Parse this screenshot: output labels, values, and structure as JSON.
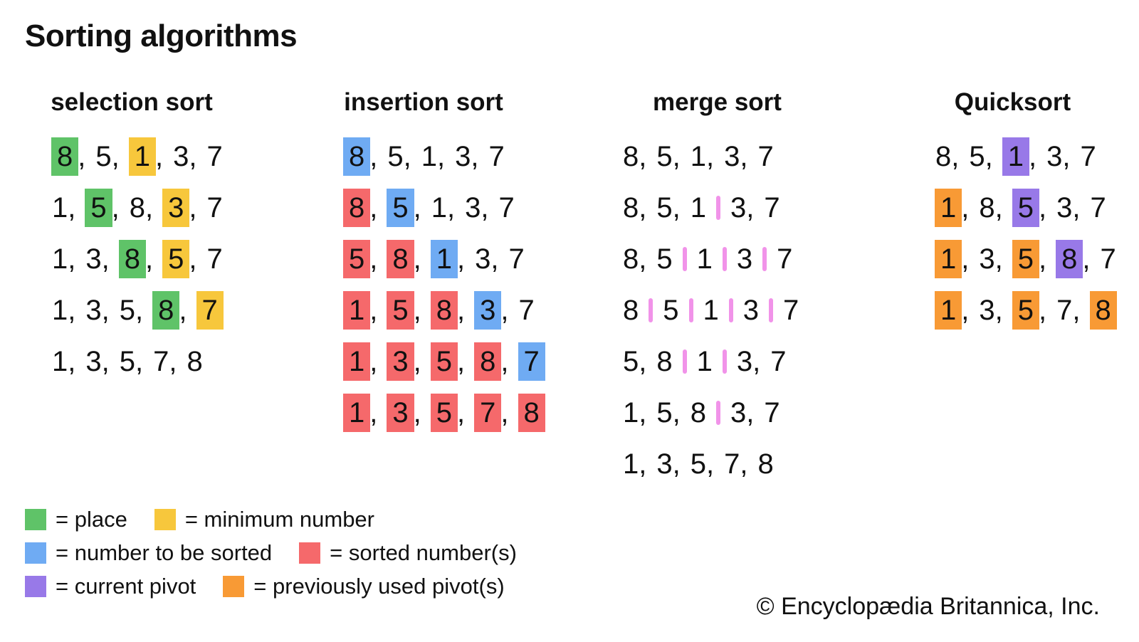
{
  "title": "Sorting algorithms",
  "copyright": "© Encyclopædia Britannica, Inc.",
  "colors": {
    "green": "#5FC368",
    "yellow": "#F7C73C",
    "blue": "#6FABF3",
    "red": "#F5696B",
    "purple": "#9879E8",
    "orange": "#F89A35",
    "pink": "#F193E9"
  },
  "columns": [
    {
      "header": "selection sort",
      "rows": [
        {
          "cells": [
            {
              "v": "8",
              "hl": "green"
            },
            {
              "v": "5"
            },
            {
              "v": "1",
              "hl": "yellow"
            },
            {
              "v": "3"
            },
            {
              "v": "7"
            }
          ],
          "seps": [
            ",",
            ",",
            ",",
            ","
          ]
        },
        {
          "cells": [
            {
              "v": "1"
            },
            {
              "v": "5",
              "hl": "green"
            },
            {
              "v": "8"
            },
            {
              "v": "3",
              "hl": "yellow"
            },
            {
              "v": "7"
            }
          ],
          "seps": [
            ",",
            ",",
            ",",
            ","
          ]
        },
        {
          "cells": [
            {
              "v": "1"
            },
            {
              "v": "3"
            },
            {
              "v": "8",
              "hl": "green"
            },
            {
              "v": "5",
              "hl": "yellow"
            },
            {
              "v": "7"
            }
          ],
          "seps": [
            ",",
            ",",
            ",",
            ","
          ]
        },
        {
          "cells": [
            {
              "v": "1"
            },
            {
              "v": "3"
            },
            {
              "v": "5"
            },
            {
              "v": "8",
              "hl": "green"
            },
            {
              "v": "7",
              "hl": "yellow"
            }
          ],
          "seps": [
            ",",
            ",",
            ",",
            ","
          ]
        },
        {
          "cells": [
            {
              "v": "1"
            },
            {
              "v": "3"
            },
            {
              "v": "5"
            },
            {
              "v": "7"
            },
            {
              "v": "8"
            }
          ],
          "seps": [
            ",",
            ",",
            ",",
            ","
          ]
        }
      ]
    },
    {
      "header": "insertion sort",
      "rows": [
        {
          "cells": [
            {
              "v": "8",
              "hl": "blue"
            },
            {
              "v": "5"
            },
            {
              "v": "1"
            },
            {
              "v": "3"
            },
            {
              "v": "7"
            }
          ],
          "seps": [
            ",",
            ",",
            ",",
            ","
          ]
        },
        {
          "cells": [
            {
              "v": "8",
              "hl": "red"
            },
            {
              "v": "5",
              "hl": "blue"
            },
            {
              "v": "1"
            },
            {
              "v": "3"
            },
            {
              "v": "7"
            }
          ],
          "seps": [
            ",",
            ",",
            ",",
            ","
          ]
        },
        {
          "cells": [
            {
              "v": "5",
              "hl": "red"
            },
            {
              "v": "8",
              "hl": "red"
            },
            {
              "v": "1",
              "hl": "blue"
            },
            {
              "v": "3"
            },
            {
              "v": "7"
            }
          ],
          "seps": [
            ",",
            ",",
            ",",
            ","
          ]
        },
        {
          "cells": [
            {
              "v": "1",
              "hl": "red"
            },
            {
              "v": "5",
              "hl": "red"
            },
            {
              "v": "8",
              "hl": "red"
            },
            {
              "v": "3",
              "hl": "blue"
            },
            {
              "v": "7"
            }
          ],
          "seps": [
            ",",
            ",",
            ",",
            ","
          ]
        },
        {
          "cells": [
            {
              "v": "1",
              "hl": "red"
            },
            {
              "v": "3",
              "hl": "red"
            },
            {
              "v": "5",
              "hl": "red"
            },
            {
              "v": "8",
              "hl": "red"
            },
            {
              "v": "7",
              "hl": "blue"
            }
          ],
          "seps": [
            ",",
            ",",
            ",",
            ","
          ]
        },
        {
          "cells": [
            {
              "v": "1",
              "hl": "red"
            },
            {
              "v": "3",
              "hl": "red"
            },
            {
              "v": "5",
              "hl": "red"
            },
            {
              "v": "7",
              "hl": "red"
            },
            {
              "v": "8",
              "hl": "red"
            }
          ],
          "seps": [
            ",",
            ",",
            ",",
            ","
          ]
        }
      ]
    },
    {
      "header": "merge sort",
      "rows": [
        {
          "cells": [
            {
              "v": "8"
            },
            {
              "v": "5"
            },
            {
              "v": "1"
            },
            {
              "v": "3"
            },
            {
              "v": "7"
            }
          ],
          "seps": [
            ",",
            ",",
            ",",
            ","
          ]
        },
        {
          "cells": [
            {
              "v": "8"
            },
            {
              "v": "5"
            },
            {
              "v": "1"
            },
            {
              "v": "3"
            },
            {
              "v": "7"
            }
          ],
          "seps": [
            ",",
            ",",
            "|",
            ","
          ]
        },
        {
          "cells": [
            {
              "v": "8"
            },
            {
              "v": "5"
            },
            {
              "v": "1"
            },
            {
              "v": "3"
            },
            {
              "v": "7"
            }
          ],
          "seps": [
            ",",
            "|",
            "|",
            "|"
          ]
        },
        {
          "cells": [
            {
              "v": "8"
            },
            {
              "v": "5"
            },
            {
              "v": "1"
            },
            {
              "v": "3"
            },
            {
              "v": "7"
            }
          ],
          "seps": [
            "|",
            "|",
            "|",
            "|"
          ]
        },
        {
          "cells": [
            {
              "v": "5"
            },
            {
              "v": "8"
            },
            {
              "v": "1"
            },
            {
              "v": "3"
            },
            {
              "v": "7"
            }
          ],
          "seps": [
            ",",
            "|",
            "|",
            ","
          ]
        },
        {
          "cells": [
            {
              "v": "1"
            },
            {
              "v": "5"
            },
            {
              "v": "8"
            },
            {
              "v": "3"
            },
            {
              "v": "7"
            }
          ],
          "seps": [
            ",",
            ",",
            "|",
            ","
          ]
        },
        {
          "cells": [
            {
              "v": "1"
            },
            {
              "v": "3"
            },
            {
              "v": "5"
            },
            {
              "v": "7"
            },
            {
              "v": "8"
            }
          ],
          "seps": [
            ",",
            ",",
            ",",
            ","
          ]
        }
      ]
    },
    {
      "header": "Quicksort",
      "rows": [
        {
          "cells": [
            {
              "v": "8"
            },
            {
              "v": "5"
            },
            {
              "v": "1",
              "hl": "purple"
            },
            {
              "v": "3"
            },
            {
              "v": "7"
            }
          ],
          "seps": [
            ",",
            ",",
            ",",
            ","
          ]
        },
        {
          "cells": [
            {
              "v": "1",
              "hl": "orange"
            },
            {
              "v": "8"
            },
            {
              "v": "5",
              "hl": "purple"
            },
            {
              "v": "3"
            },
            {
              "v": "7"
            }
          ],
          "seps": [
            ",",
            ",",
            ",",
            ","
          ]
        },
        {
          "cells": [
            {
              "v": "1",
              "hl": "orange"
            },
            {
              "v": "3"
            },
            {
              "v": "5",
              "hl": "orange"
            },
            {
              "v": "8",
              "hl": "purple"
            },
            {
              "v": "7"
            }
          ],
          "seps": [
            ",",
            ",",
            ",",
            ","
          ]
        },
        {
          "cells": [
            {
              "v": "1",
              "hl": "orange"
            },
            {
              "v": "3"
            },
            {
              "v": "5",
              "hl": "orange"
            },
            {
              "v": "7"
            },
            {
              "v": "8",
              "hl": "orange"
            }
          ],
          "seps": [
            ",",
            ",",
            ",",
            ","
          ]
        }
      ]
    }
  ],
  "legend": {
    "rows": [
      [
        {
          "color": "green",
          "label": "= place"
        },
        {
          "color": "yellow",
          "label": "= minimum number"
        }
      ],
      [
        {
          "color": "blue",
          "label": "= number to be sorted"
        },
        {
          "color": "red",
          "label": "= sorted number(s)"
        }
      ],
      [
        {
          "color": "purple",
          "label": "= current pivot"
        },
        {
          "color": "orange",
          "label": "= previously used pivot(s)"
        }
      ]
    ]
  }
}
